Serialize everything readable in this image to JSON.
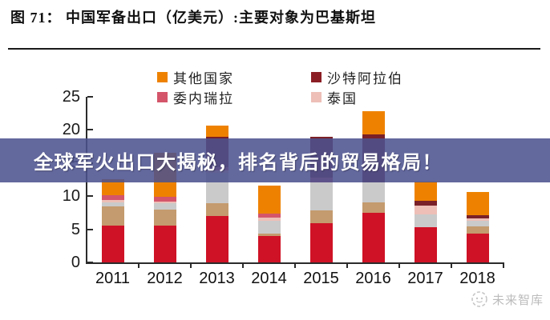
{
  "title": "图 71： 中国军备出口（亿美元）:主要对象为巴基斯坦",
  "banner": {
    "text": "全球军火出口大揭秘，排名背后的贸易格局！",
    "background": "#4C528E"
  },
  "watermark": {
    "label": "未来智库"
  },
  "legend": {
    "items": [
      {
        "label": "其他国家",
        "color": "#EE8200"
      },
      {
        "label": "沙特阿拉伯",
        "color": "#8B1E24"
      },
      {
        "label": "委内瑞拉",
        "color": "#D4556A"
      },
      {
        "label": "泰国",
        "color": "#EDBFB7"
      }
    ]
  },
  "chart_data": {
    "type": "bar",
    "stacked": true,
    "title": "中国军备出口（亿美元）",
    "categories": [
      "2011",
      "2012",
      "2013",
      "2014",
      "2015",
      "2016",
      "2017",
      "2018"
    ],
    "series": [
      {
        "name": "",
        "color": "#CF1226",
        "legend_visible": false,
        "values": [
          5.5,
          5.5,
          7.0,
          4.0,
          5.9,
          7.5,
          5.3,
          4.4
        ]
      },
      {
        "name": "",
        "color": "#C49B6E",
        "legend_visible": false,
        "values": [
          2.9,
          2.5,
          1.9,
          0.4,
          1.9,
          1.5,
          0.0,
          1.0
        ]
      },
      {
        "name": "",
        "color": "#CACACA",
        "legend_visible": false,
        "values": [
          0.7,
          0.9,
          4.6,
          1.9,
          4.3,
          3.1,
          1.9,
          0.9
        ]
      },
      {
        "name": "泰国",
        "color": "#EDBFB7",
        "legend_visible": true,
        "values": [
          0.3,
          0.3,
          0.4,
          0.5,
          0.0,
          0.0,
          1.4,
          0.4
        ]
      },
      {
        "name": "委内瑞拉",
        "color": "#D4556A",
        "legend_visible": true,
        "values": [
          0.8,
          0.7,
          0.5,
          0.6,
          0.7,
          0.0,
          0.0,
          0.0
        ]
      },
      {
        "name": "沙特阿拉伯",
        "color": "#7A2028",
        "legend_visible": true,
        "values": [
          0.0,
          0.0,
          4.6,
          0.0,
          6.2,
          7.2,
          0.7,
          0.4
        ]
      },
      {
        "name": "其他国家",
        "color": "#EE8200",
        "legend_visible": true,
        "values": [
          2.4,
          6.7,
          1.6,
          4.2,
          0.0,
          3.5,
          2.9,
          3.5
        ]
      }
    ],
    "totals": [
      12.6,
      16.6,
      20.6,
      11.6,
      19.0,
      22.8,
      12.2,
      10.6
    ],
    "ylim": [
      0,
      25
    ],
    "yticks": [
      0,
      5,
      10,
      15,
      20,
      25
    ],
    "grid": false,
    "legend_position": "top"
  }
}
